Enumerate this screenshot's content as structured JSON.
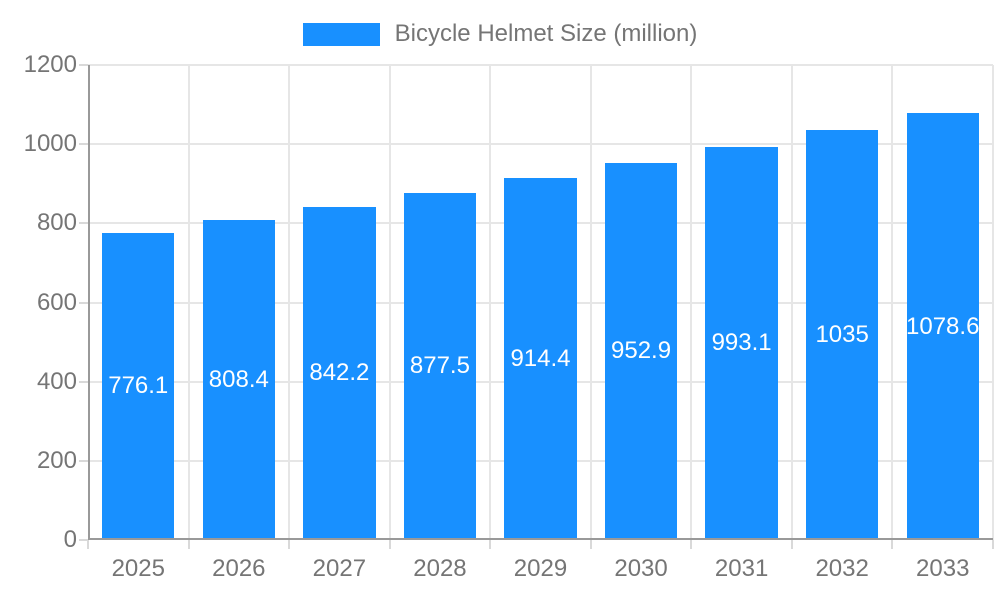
{
  "chart_data": {
    "type": "bar",
    "title": "Bicycle Helmet Size (million)",
    "categories": [
      "2025",
      "2026",
      "2027",
      "2028",
      "2029",
      "2030",
      "2031",
      "2032",
      "2033"
    ],
    "series": [
      {
        "name": "Bicycle Helmet Size (million)",
        "values": [
          776.1,
          808.4,
          842.2,
          877.5,
          914.4,
          952.9,
          993.1,
          1035,
          1078.6
        ]
      }
    ],
    "value_labels": [
      "776.1",
      "808.4",
      "842.2",
      "877.5",
      "914.4",
      "952.9",
      "993.1",
      "1035",
      "1078.6"
    ],
    "xlabel": "",
    "ylabel": "",
    "ylim": [
      0,
      1200
    ],
    "yticks": [
      0,
      200,
      400,
      600,
      800,
      1000,
      1200
    ],
    "grid": true,
    "legend_position": "top-center",
    "bar_width_ratio": 0.72,
    "colors": {
      "bar": "#1890ff",
      "bar_label": "#ffffff",
      "axis_text": "#757575",
      "grid_line": "#e6e6e6",
      "axis_line": "#999999",
      "tick_mark": "#d9d9d9"
    }
  },
  "legend": {
    "label": "Bicycle Helmet Size (million)"
  }
}
